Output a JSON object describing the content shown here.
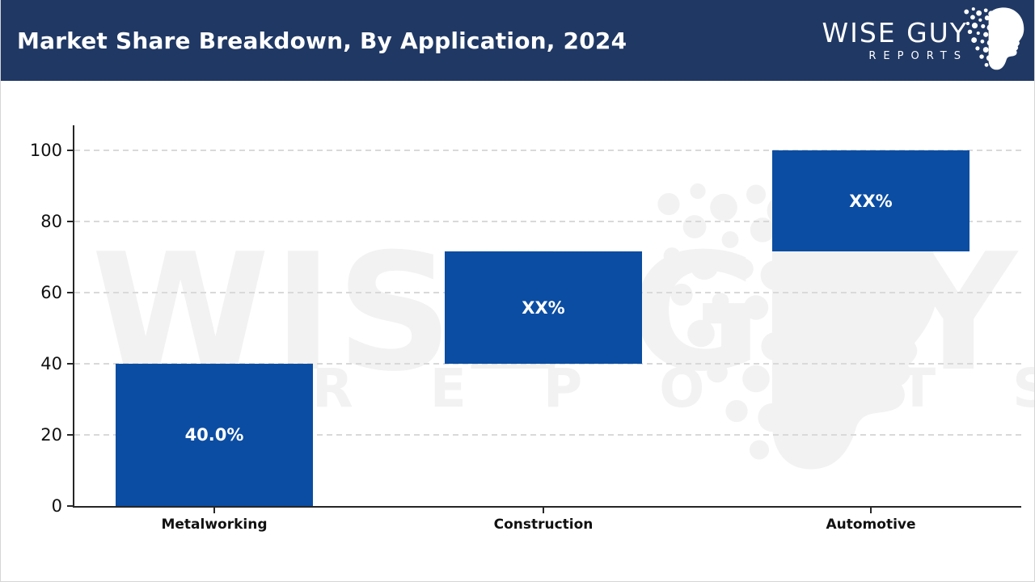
{
  "header": {
    "title": "Market Share Breakdown, By Application, 2024",
    "logo": {
      "line1": "WISE GUY",
      "line2": "REPORTS"
    }
  },
  "watermark": {
    "line1": "WISE GUY",
    "line2": "REPORTS"
  },
  "chart_data": {
    "type": "bar",
    "subtype": "floating-waterfall",
    "title": "Market Share Breakdown, By Application, 2024",
    "categories": [
      "Metalworking",
      "Construction",
      "Automotive"
    ],
    "series": [
      {
        "name": "Market share (%)",
        "segments": [
          {
            "category": "Metalworking",
            "start": 0,
            "end": 40,
            "label": "40.0%"
          },
          {
            "category": "Construction",
            "start": 40,
            "end": 71.5,
            "label": "XX%"
          },
          {
            "category": "Automotive",
            "start": 71.5,
            "end": 100,
            "label": "XX%"
          }
        ]
      }
    ],
    "xlabel": "",
    "ylabel": "",
    "ylim": [
      0,
      100
    ],
    "yticks": [
      0,
      20,
      40,
      60,
      80,
      100
    ],
    "grid": "horizontal-dashed",
    "legend": "none",
    "colors": {
      "bar": "#0b4da2",
      "bar_label": "#ffffff",
      "axis": "#262626",
      "tick_label": "#111111",
      "gridline": "#d9d9d9",
      "header_bg": "#203864",
      "header_text": "#ffffff",
      "watermark": "#f2f2f2"
    }
  }
}
